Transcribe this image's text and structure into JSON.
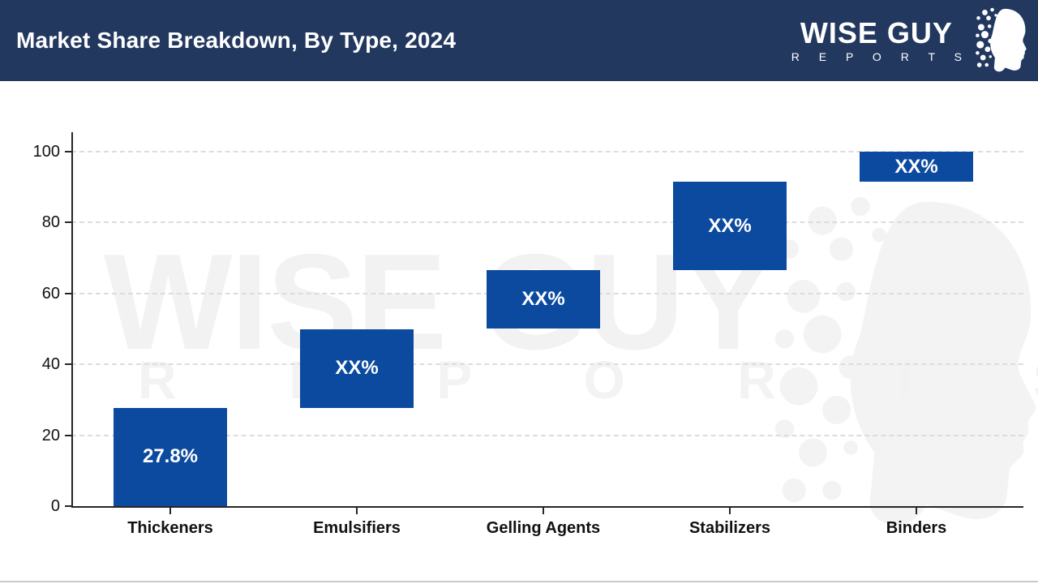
{
  "header": {
    "bg_color": "#22385f",
    "logo": {
      "line1": "WISE GUY",
      "line2": "R E P O R T S"
    }
  },
  "watermark": {
    "line1": "WISE GUY",
    "line2": "R E P O R T S"
  },
  "chart_data": {
    "type": "bar",
    "subtype": "floating-waterfall",
    "title": "Market Share Breakdown, By Type, 2024",
    "categories": [
      "Thickeners",
      "Emulsifiers",
      "Gelling Agents",
      "Stabilizers",
      "Binders"
    ],
    "values": [
      27.8,
      22.2,
      16.5,
      25.0,
      8.5
    ],
    "segments": [
      {
        "category": "Thickeners",
        "start": 0,
        "end": 27.8,
        "label": "27.8%"
      },
      {
        "category": "Emulsifiers",
        "start": 27.8,
        "end": 50.0,
        "label": "XX%"
      },
      {
        "category": "Gelling Agents",
        "start": 50.0,
        "end": 66.5,
        "label": "XX%"
      },
      {
        "category": "Stabilizers",
        "start": 66.5,
        "end": 91.5,
        "label": "XX%"
      },
      {
        "category": "Binders",
        "start": 91.5,
        "end": 100,
        "label": "XX%"
      }
    ],
    "xlabel": "",
    "ylabel": "",
    "ylim": [
      0,
      100
    ],
    "yticks": [
      0,
      20,
      40,
      60,
      80,
      100
    ],
    "grid": "horizontal-dashed",
    "legend": "none",
    "colors": {
      "bar": "#0b4a9f",
      "bar_label": "#ffffff",
      "grid": "#dcdcdc",
      "axis": "#262626",
      "tick_label": "#111111",
      "header_bg": "#22385f",
      "watermark": "#f2f2f2",
      "footer_line": "#c9c9c9"
    }
  }
}
